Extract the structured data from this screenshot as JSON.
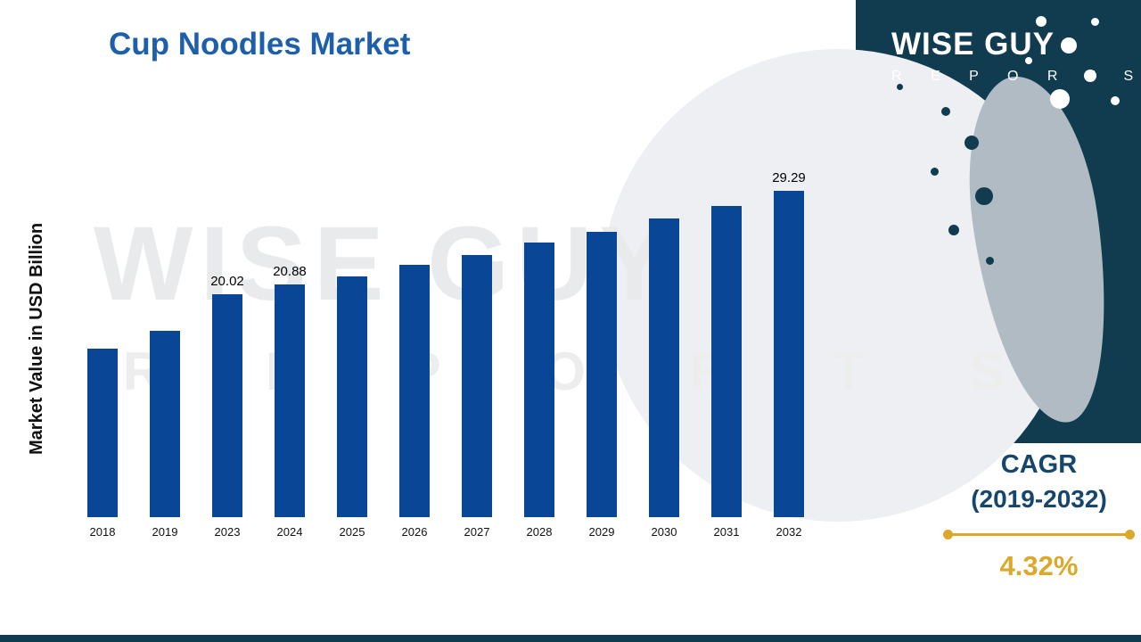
{
  "page": {
    "title": "Cup Noodles Market",
    "title_color": "#1d5fab",
    "background": "#ffffff"
  },
  "branding": {
    "logo_line1": "WISE GUY",
    "logo_line2": "R E P O R T S",
    "panel_color": "#113c50",
    "watermark_line1": "WISE GUY",
    "watermark_line2": "R E P O R T S"
  },
  "cagr": {
    "label": "CAGR",
    "range": "(2019-2032)",
    "value": "4.32%",
    "text_color": "#16466b",
    "accent_color": "#dca829"
  },
  "chart_data": {
    "type": "bar",
    "title": "Cup Noodles Market",
    "xlabel": "",
    "ylabel": "Market Value in USD Billion",
    "unit": "USD Billion",
    "bar_color": "#0a4696",
    "ylim": [
      0,
      32
    ],
    "grid": false,
    "legend": false,
    "categories": [
      "2018",
      "2019",
      "2023",
      "2024",
      "2025",
      "2026",
      "2027",
      "2028",
      "2029",
      "2030",
      "2031",
      "2032"
    ],
    "values": [
      15.1,
      16.7,
      20.02,
      20.88,
      21.6,
      22.6,
      23.5,
      24.6,
      25.6,
      26.8,
      27.9,
      29.29
    ],
    "data_labels": {
      "2023": "20.02",
      "2024": "20.88",
      "2032": "29.29"
    }
  }
}
